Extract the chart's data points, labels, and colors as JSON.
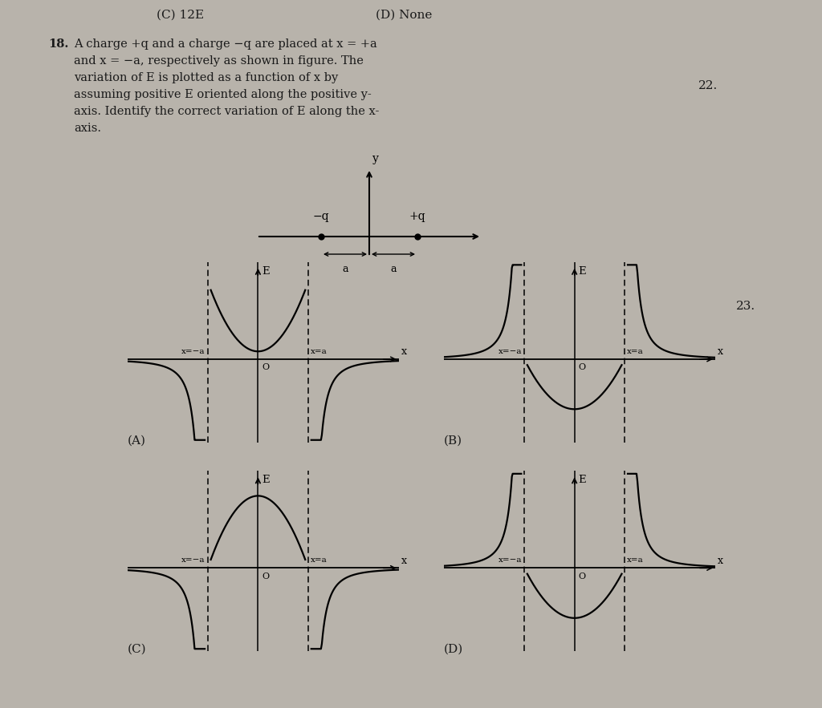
{
  "background_color": "#b8b3ab",
  "text_color": "#1a1a1a",
  "top_left_text": "(C) 12E",
  "top_right_text": "(D) None",
  "question_lines": [
    "A charge +q and a charge −q are placed at x = +a",
    "and x = −a, respectively as shown in figure. The",
    "variation of E is plotted as a function of x by",
    "assuming positive E oriented along the positive y-",
    "axis. Identify the correct variation of E along the x-",
    "axis."
  ],
  "side_22": "22.",
  "side_23": "23.",
  "subplot_labels": [
    "(A)",
    "(B)",
    "(C)",
    "(D)"
  ],
  "variants": [
    "A",
    "B",
    "C",
    "D"
  ],
  "a_val": 1.0,
  "eps": 0.06,
  "xlim": [
    -2.6,
    2.8
  ],
  "ylim": [
    -3.0,
    3.5
  ]
}
